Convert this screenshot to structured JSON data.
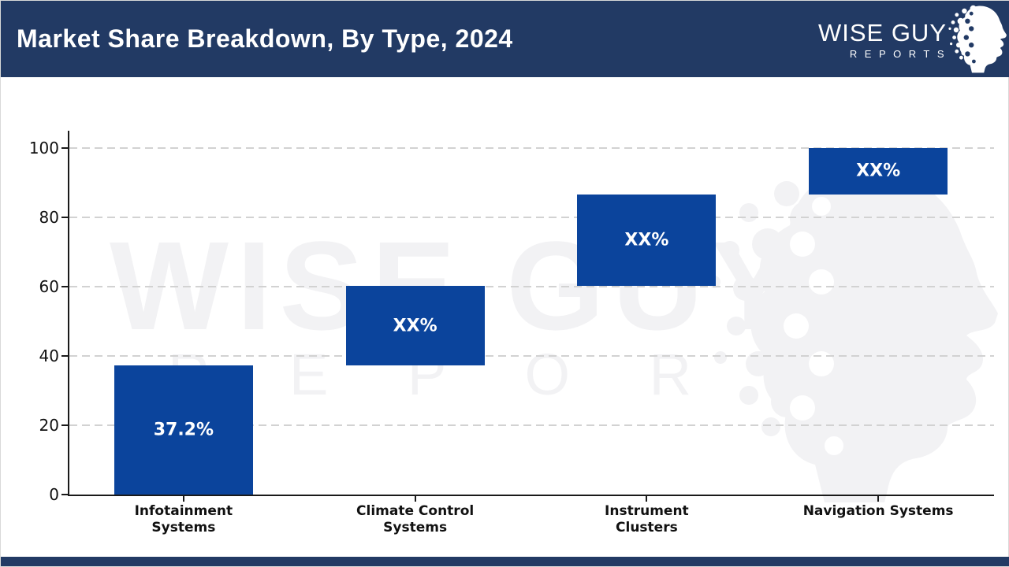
{
  "header": {
    "title": "Market Share Breakdown, By Type, 2024"
  },
  "logo": {
    "line1": "WISE GUY",
    "line2": "REPORTS"
  },
  "watermark": {
    "line1": "WISE GUY",
    "line2": "R E P O R T S"
  },
  "colors": {
    "header_navy": "#223A64",
    "bar_blue": "#0B449C",
    "gridline_gray": "#d2d2d2",
    "axis_black": "#1a1a1a",
    "watermark_gray": "#f2f2f4",
    "label_white": "#ffffff"
  },
  "chart_data": {
    "type": "bar",
    "subtype": "waterfall",
    "title": "Market Share Breakdown, By Type, 2024",
    "categories": [
      "Infotainment\nSystems",
      "Climate Control\nSystems",
      "Instrument\nClusters",
      "Navigation Systems"
    ],
    "series": [
      {
        "name": "Market Share",
        "segments": [
          {
            "start": 0,
            "end": 37.2,
            "label": "37.2%"
          },
          {
            "start": 37.2,
            "end": 60.3,
            "label": "XX%"
          },
          {
            "start": 60.3,
            "end": 86.6,
            "label": "XX%"
          },
          {
            "start": 86.6,
            "end": 100.0,
            "label": "XX%"
          }
        ]
      }
    ],
    "xlabel": "",
    "ylabel": "",
    "ylim": [
      0,
      100
    ],
    "yticks": [
      0,
      20,
      40,
      60,
      80,
      100
    ],
    "grid": "horizontal-dashed",
    "legend": "none"
  }
}
